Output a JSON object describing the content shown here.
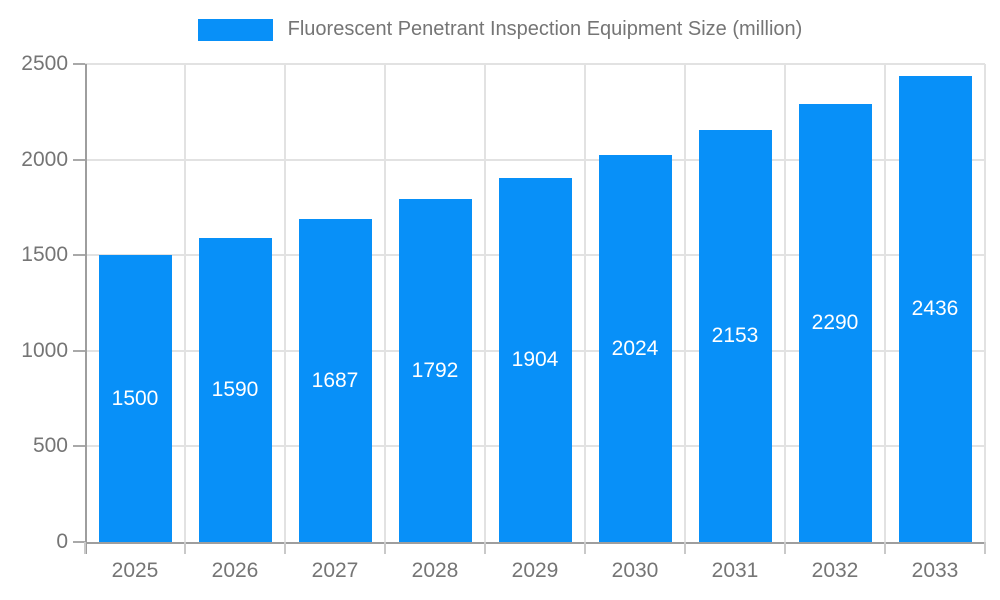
{
  "legend": {
    "label": "Fluorescent Penetrant Inspection Equipment Size (million)",
    "swatch_color": "#0890f8"
  },
  "chart_data": {
    "type": "bar",
    "title": "Fluorescent Penetrant Inspection Equipment Size (million)",
    "categories": [
      "2025",
      "2026",
      "2027",
      "2028",
      "2029",
      "2030",
      "2031",
      "2032",
      "2033"
    ],
    "values": [
      1500,
      1590,
      1687,
      1792,
      1904,
      2024,
      2153,
      2290,
      2436
    ],
    "xlabel": "",
    "ylabel": "",
    "ylim": [
      0,
      2500
    ],
    "yticks": [
      0,
      500,
      1000,
      1500,
      2000,
      2500
    ],
    "grid": true,
    "legend_position": "top",
    "bar_color": "#0890f8",
    "bar_label_color": "#ffffff",
    "axis_color": "#9e9e9e",
    "gridline_color": "#e2e2e2",
    "tick_label_color": "#757575"
  }
}
